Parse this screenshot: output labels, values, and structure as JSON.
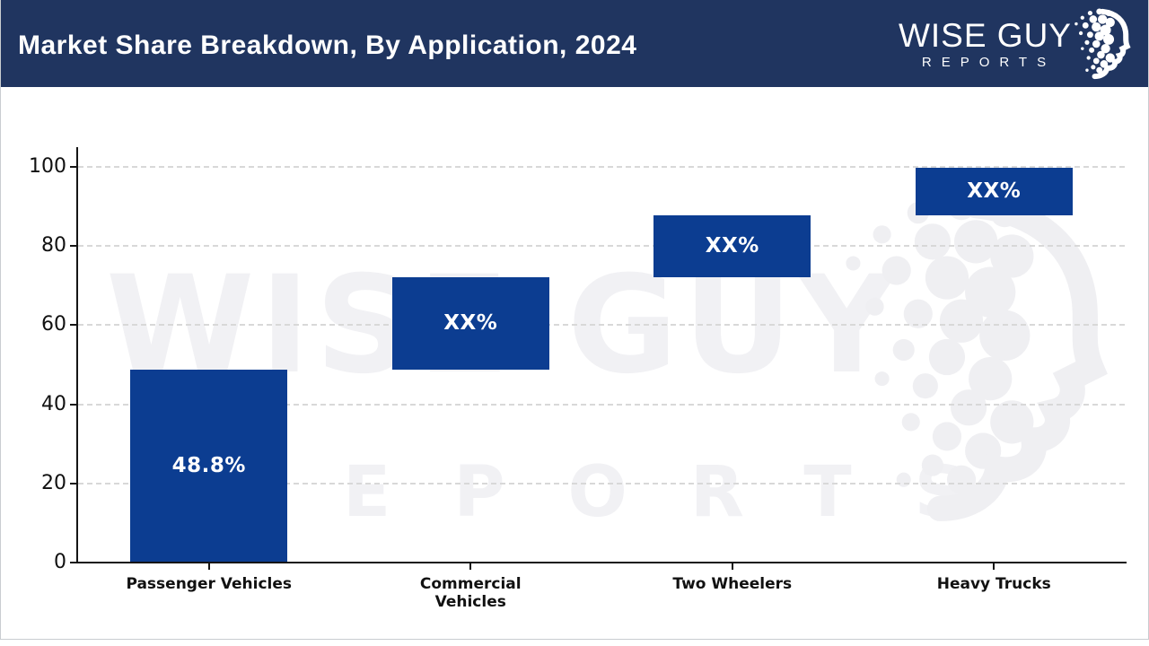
{
  "header": {
    "title": "Market Share Breakdown, By Application, 2024",
    "logo": {
      "name_top": "WISE GUY",
      "name_bottom": "REPORTS",
      "face_icon": "dotted-face-profile-icon"
    }
  },
  "watermark": {
    "text_top": "WISE GUY",
    "text_bottom": "REPORTS",
    "face_icon": "dotted-face-profile-icon"
  },
  "chart_data": {
    "type": "bar",
    "variant": "waterfall",
    "title": "Market Share Breakdown, By Application, 2024",
    "categories": [
      "Passenger Vehicles",
      "Commercial Vehicles",
      "Two Wheelers",
      "Heavy Trucks"
    ],
    "categories_display": [
      [
        "Passenger Vehicles"
      ],
      [
        "Commercial",
        "Vehicles"
      ],
      [
        "Two Wheelers"
      ],
      [
        "Heavy Trucks"
      ]
    ],
    "series": [
      {
        "name": "Market share (%)",
        "segments": [
          {
            "category": "Passenger Vehicles",
            "start": 0,
            "end": 48.8,
            "label": "48.8%"
          },
          {
            "category": "Commercial Vehicles",
            "start": 48.8,
            "end": 72.1,
            "label": "XX%"
          },
          {
            "category": "Two Wheelers",
            "start": 72.1,
            "end": 87.8,
            "label": "XX%"
          },
          {
            "category": "Heavy Trucks",
            "start": 87.8,
            "end": 99.8,
            "label": "XX%"
          }
        ]
      }
    ],
    "increments_estimated": [
      48.8,
      23.3,
      15.7,
      12.0
    ],
    "xlabel": "",
    "ylabel": "",
    "ylim": [
      0,
      100
    ],
    "yticks": [
      0,
      20,
      40,
      60,
      80,
      100
    ],
    "grid": "horizontal-dashed",
    "legend": "none",
    "bar_color": "#0c3d91",
    "bar_label_color": "#ffffff"
  },
  "colors": {
    "header_bg": "#203560",
    "header_text": "#ffffff",
    "bar": "#0c3d91",
    "grid_line": "#d8d8d8",
    "axis": "#151515",
    "tick_label": "#111111",
    "watermark": "#f1f1f4",
    "frame_border": "#c9cdd1",
    "background": "#ffffff"
  }
}
